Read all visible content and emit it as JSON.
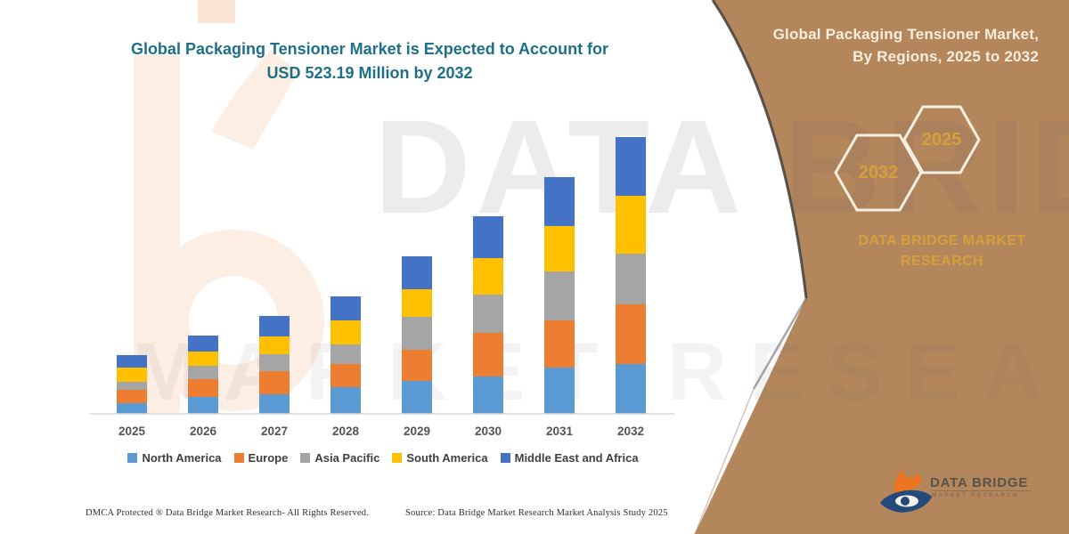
{
  "title": {
    "line1": "Global Packaging Tensioner Market is Expected to Account for",
    "line2": "USD 523.19 Million by 2032"
  },
  "side_panel": {
    "heading_line1": "Global Packaging Tensioner Market,",
    "heading_line2": "By Regions, 2025 to 2032",
    "hexagon_left_label": "2032",
    "hexagon_right_label": "2025",
    "brand_line1": "DATA BRIDGE MARKET",
    "brand_line2": "RESEARCH"
  },
  "logo": {
    "name": "DATA BRIDGE",
    "subtitle": "MARKET RESEARCH"
  },
  "watermark": {
    "row1": "DATA BRIDGE",
    "row2": "MARKET RESEARCH"
  },
  "footer": {
    "left": "DMCA Protected ® Data Bridge Market Research-  All Rights Reserved.",
    "right": "Source: Data Bridge Market Research Market Analysis Study 2025"
  },
  "colors": {
    "panel_brown": "#b4865c",
    "title_teal": "#1e6f88",
    "gold": "#d5a03c",
    "cream_outline": "#f6efe0",
    "axis_label": "#555555",
    "legend_text": "#3f3f3f",
    "logo_flame_orange": "#ed7422",
    "logo_swoosh_navy": "#24497b"
  },
  "chart_data": {
    "type": "bar",
    "stacked": true,
    "unit": "USD Million",
    "grid": false,
    "legend_position": "bottom",
    "categories": [
      "2025",
      "2026",
      "2027",
      "2028",
      "2029",
      "2030",
      "2031",
      "2032"
    ],
    "series": [
      {
        "name": "North America",
        "color": "#5B9BD5",
        "values": [
          20.2,
          32.0,
          37.0,
          50.5,
          62.2,
          70.7,
          87.5,
          94.2
        ]
      },
      {
        "name": "Europe",
        "color": "#ED7D31",
        "values": [
          25.2,
          33.6,
          43.7,
          43.7,
          58.9,
          82.4,
          89.2,
          112.7
        ]
      },
      {
        "name": "Asia Pacific",
        "color": "#A5A5A5",
        "values": [
          15.1,
          25.2,
          32.0,
          37.0,
          62.2,
          72.3,
          92.5,
          95.9
        ]
      },
      {
        "name": "South America",
        "color": "#FFC000",
        "values": [
          26.9,
          26.9,
          33.6,
          45.4,
          52.2,
          69.0,
          85.8,
          109.4
        ]
      },
      {
        "name": "Middle East and Africa",
        "color": "#4472C4",
        "values": [
          23.6,
          30.3,
          38.7,
          45.4,
          62.2,
          79.1,
          92.5,
          111.0
        ]
      }
    ],
    "totals_estimated": [
      111.0,
      148.0,
      185.0,
      222.0,
      297.7,
      373.5,
      447.5,
      523.2
    ],
    "x_labels": [
      "2025",
      "2026",
      "2027",
      "2028",
      "2029",
      "2030",
      "2031",
      "2032"
    ],
    "y_axis_visible": false
  }
}
